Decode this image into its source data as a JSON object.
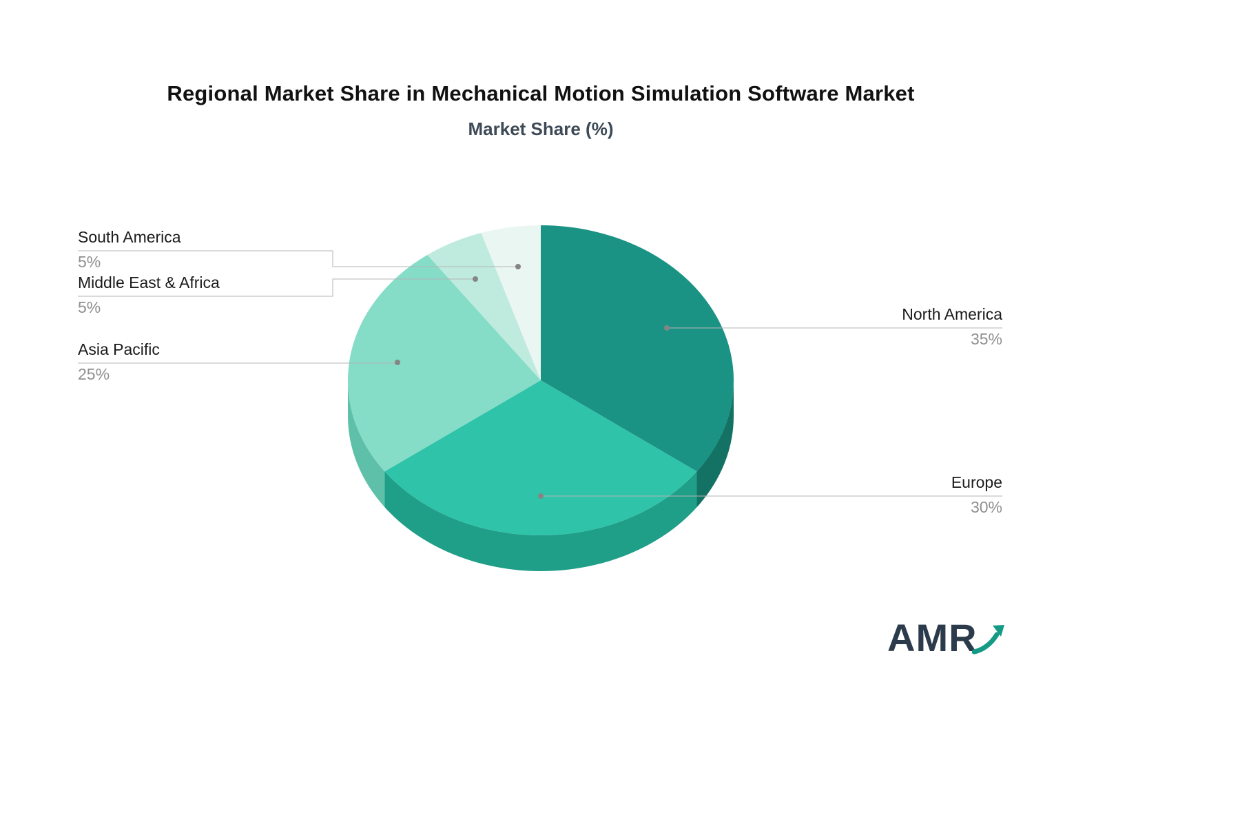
{
  "chart_data": {
    "type": "pie",
    "style": "3d",
    "title": "Regional Market Share in Mechanical Motion Simulation Software Market",
    "subtitle": "Market Share (%)",
    "unit": "%",
    "direction": "clockwise",
    "start_angle_deg": 0,
    "legend_position": "callout-labels",
    "slices": [
      {
        "label": "North America",
        "value": 35,
        "display": "35%",
        "color": "#1b9384",
        "side_color": "#137263"
      },
      {
        "label": "Europe",
        "value": 30,
        "display": "30%",
        "color": "#2fc3aa",
        "side_color": "#1f9e88"
      },
      {
        "label": "Asia Pacific",
        "value": 25,
        "display": "25%",
        "color": "#85dcc7",
        "side_color": "#5fc0a9"
      },
      {
        "label": "Middle East & Africa",
        "value": 5,
        "display": "5%",
        "color": "#bfeade",
        "side_color": "#9cd4c4"
      },
      {
        "label": "South America",
        "value": 5,
        "display": "5%",
        "color": "#e9f6f1",
        "side_color": "#c9e6dd"
      }
    ]
  },
  "logo": {
    "text": "AMR",
    "arrow_icon": "trend-up-arrow",
    "text_color": "#2c3b4b",
    "arrow_color": "#149a85"
  }
}
